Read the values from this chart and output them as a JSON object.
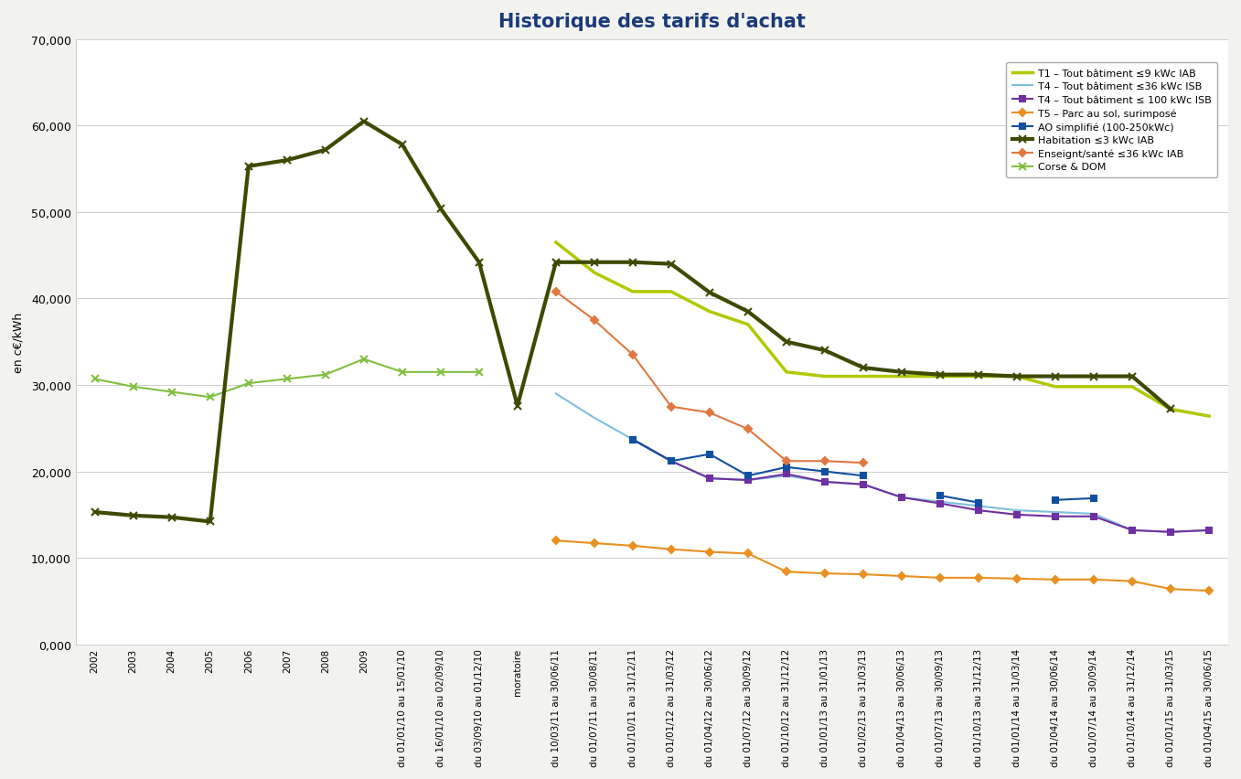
{
  "title": "Historique des tarifs d'achat",
  "ylabel": "en c€/kWh",
  "ylim": [
    0,
    70000
  ],
  "yticks": [
    0,
    10000,
    20000,
    30000,
    40000,
    50000,
    60000,
    70000
  ],
  "ytick_labels": [
    "0,000",
    "10,000",
    "20,000",
    "30,000",
    "40,000",
    "50,000",
    "60,000",
    "70,000"
  ],
  "background_color": "#f2f2ee",
  "plot_background": "#ffffff",
  "x_labels": [
    "2002",
    "2003",
    "2004",
    "2005",
    "2006",
    "2007",
    "2008",
    "2009",
    "du 01/01/10 au 15/01/10",
    "du 16/01/10 au 02/09/10",
    "du 03/09/10 au 01/12/10",
    "moratoire",
    "du 10/03/11 au 30/06/11",
    "du 01/07/11 au 30/08/11",
    "du 01/10/11 au 31/12/11",
    "du 01/01/12 au 31/03/12",
    "du 01/04/12 au 30/06/12",
    "du 01/07/12 au 30/09/12",
    "du 01/10/12 au 31/12/12",
    "du 01/01/13 au 31/01/13",
    "du 01/02/13 au 31/03/13",
    "du 01/04/13 au 30/06/13",
    "du 01/07/13 au 30/09/13",
    "du 01/10/13 au 31/12/13",
    "du 01/01/14 au 31/03/14",
    "du 01/04/14 au 30/06/14",
    "du 01/07/14 au 30/09/14",
    "du 01/10/14 au 31/12/14",
    "du 01/01/15 au 31/03/15",
    "du 01/04/15 au 30/06/15"
  ],
  "series": [
    {
      "key": "T1",
      "label": "T1 – Tout bâtiment ≤9 kWc IAB",
      "color": "#b0c800",
      "linewidth": 2.5,
      "marker": null,
      "markersize": 0,
      "linestyle": "-",
      "zorder": 4,
      "values": [
        null,
        null,
        null,
        null,
        null,
        null,
        null,
        null,
        null,
        null,
        null,
        null,
        46500,
        43000,
        40800,
        40800,
        38500,
        37000,
        31500,
        31000,
        31000,
        31000,
        31000,
        31000,
        31000,
        29800,
        29800,
        29800,
        27200,
        26400
      ]
    },
    {
      "key": "T4_36",
      "label": "T4 – Tout bâtiment ≤36 kWc ISB",
      "color": "#7fbfdf",
      "linewidth": 1.5,
      "marker": null,
      "markersize": 0,
      "linestyle": "-",
      "zorder": 3,
      "values": [
        null,
        null,
        null,
        null,
        null,
        null,
        null,
        null,
        null,
        null,
        null,
        null,
        29000,
        26200,
        23700,
        21200,
        19200,
        19000,
        19500,
        18800,
        18500,
        17000,
        16500,
        16000,
        15500,
        15300,
        15100,
        13200,
        13000,
        13200
      ]
    },
    {
      "key": "T4_100",
      "label": "T4 – Tout bâtiment ≤ 100 kWc ISB",
      "color": "#7030a0",
      "linewidth": 1.5,
      "marker": "s",
      "markersize": 5,
      "linestyle": "-",
      "zorder": 3,
      "values": [
        null,
        null,
        null,
        null,
        null,
        null,
        null,
        null,
        null,
        null,
        null,
        null,
        null,
        null,
        23700,
        21200,
        19200,
        19000,
        19700,
        18800,
        18500,
        17000,
        16300,
        15500,
        15000,
        14800,
        14800,
        13200,
        13000,
        13200
      ]
    },
    {
      "key": "T5",
      "label": "T5 – Parc au sol, surimposé",
      "color": "#e89020",
      "linewidth": 1.5,
      "marker": "D",
      "markersize": 4,
      "linestyle": "-",
      "zorder": 3,
      "values": [
        null,
        null,
        null,
        null,
        null,
        null,
        null,
        null,
        null,
        null,
        null,
        null,
        12000,
        11700,
        11400,
        11000,
        10700,
        10500,
        8400,
        8200,
        8100,
        7900,
        7700,
        7700,
        7600,
        7500,
        7500,
        7300,
        6400,
        6200
      ]
    },
    {
      "key": "AO",
      "label": "AO simplifié (100-250kWc)",
      "color": "#1050a0",
      "linewidth": 1.5,
      "marker": "s",
      "markersize": 5,
      "linestyle": "-",
      "zorder": 3,
      "values": [
        null,
        null,
        null,
        null,
        null,
        null,
        null,
        null,
        null,
        null,
        null,
        null,
        null,
        null,
        23700,
        21200,
        22000,
        19500,
        20500,
        20000,
        19500,
        null,
        17200,
        16400,
        null,
        16700,
        16900,
        null,
        null,
        null
      ]
    },
    {
      "key": "Habitation",
      "label": "Habitation ≤3 kWc IAB",
      "color": "#3d4a00",
      "linewidth": 3,
      "marker": "x",
      "markersize": 6,
      "linestyle": "-",
      "zorder": 5,
      "values": [
        15300,
        14900,
        14700,
        14200,
        55300,
        56000,
        57200,
        60500,
        57800,
        50400,
        44200,
        27600,
        44200,
        44200,
        44200,
        44000,
        40700,
        38500,
        35000,
        34000,
        32000,
        31500,
        31200,
        31200,
        31000,
        31000,
        31000,
        31000,
        27200,
        null
      ]
    },
    {
      "key": "Enseignt",
      "label": "Enseignt/santé ≤36 kWc IAB",
      "color": "#e07840",
      "linewidth": 1.5,
      "marker": "D",
      "markersize": 4,
      "linestyle": "-",
      "zorder": 3,
      "values": [
        null,
        null,
        null,
        null,
        null,
        null,
        null,
        null,
        null,
        null,
        null,
        null,
        40800,
        37500,
        33500,
        27500,
        26800,
        24900,
        21200,
        21200,
        21000,
        null,
        null,
        null,
        null,
        null,
        null,
        null,
        null,
        null
      ]
    },
    {
      "key": "Corse",
      "label": "Corse & DOM",
      "color": "#80c040",
      "linewidth": 1.5,
      "marker": "x",
      "markersize": 6,
      "linestyle": "-",
      "zorder": 3,
      "values": [
        30700,
        29800,
        29200,
        28600,
        30200,
        30700,
        31200,
        33000,
        31500,
        31500,
        31500,
        null,
        null,
        null,
        null,
        null,
        null,
        null,
        null,
        null,
        null,
        null,
        null,
        null,
        null,
        null,
        null,
        null,
        null,
        null
      ]
    }
  ],
  "legend_order": [
    "T1",
    "T4_36",
    "T4_100",
    "T5",
    "AO",
    "Habitation",
    "Enseignt",
    "Corse"
  ]
}
